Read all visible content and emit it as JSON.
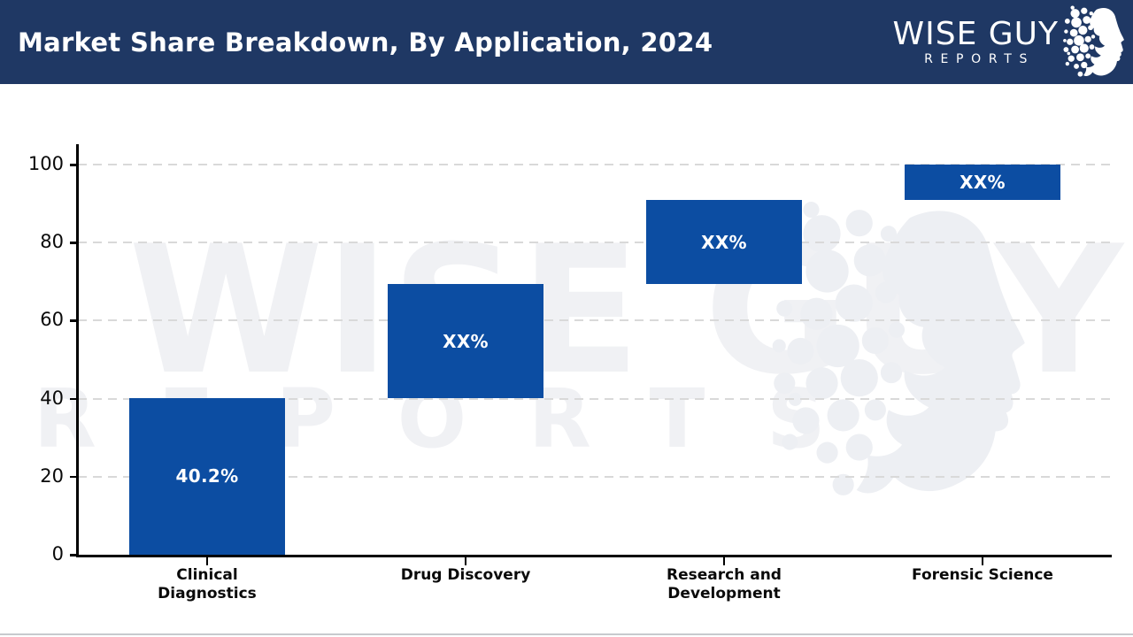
{
  "header": {
    "title": "Market Share Breakdown, By Application, 2024",
    "bg_color": "#1f3864",
    "logo": {
      "wordmark": "WISE GUY",
      "subtext": "REPORTS"
    }
  },
  "watermark": {
    "wordmark": "WISE GUY",
    "subtext": "REPORTS",
    "color": "#f0f1f4"
  },
  "chart_data": {
    "type": "bar",
    "variant": "waterfall",
    "title": "Market Share Breakdown, By Application, 2024",
    "categories": [
      "Clinical\nDiagnostics",
      "Drug Discovery",
      "Research and\nDevelopment",
      "Forensic Science"
    ],
    "series": [
      {
        "name": "Market share (%)",
        "starts": [
          0,
          40.2,
          69.3,
          90.9
        ],
        "ends": [
          40.2,
          69.3,
          90.9,
          100
        ]
      }
    ],
    "bar_labels": [
      "40.2%",
      "XX%",
      "XX%",
      "XX%"
    ],
    "ylim": [
      0,
      100
    ],
    "yticks": [
      0,
      20,
      40,
      60,
      80,
      100
    ],
    "grid": "horizontal-dashed",
    "legend": "none",
    "bar_color": "#0c4da2",
    "bar_label_color": "#ffffff",
    "grid_color": "#d9d9d9",
    "axis_color": "#000000"
  }
}
